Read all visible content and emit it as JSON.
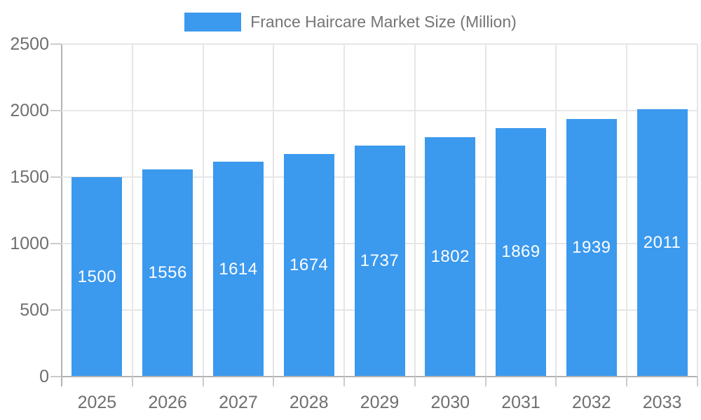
{
  "chart_data": {
    "type": "bar",
    "title": "France Haircare Market Size (Million)",
    "categories": [
      "2025",
      "2026",
      "2027",
      "2028",
      "2029",
      "2030",
      "2031",
      "2032",
      "2033"
    ],
    "values": [
      1500,
      1556,
      1614,
      1674,
      1737,
      1802,
      1869,
      1939,
      2011
    ],
    "xlabel": "",
    "ylabel": "",
    "ylim": [
      0,
      2500
    ],
    "yticks": [
      0,
      500,
      1000,
      1500,
      2000,
      2500
    ],
    "grid": true,
    "legend_position": "top",
    "bar_value_labels": "inside-center"
  },
  "colors": {
    "bar": "#3B99EE",
    "bar_label": "#FFFFFF",
    "axis_text": "#6F6F6F",
    "legend_text": "#757575",
    "gridline": "#E6E6E6",
    "axis_line": "#B3B3B3",
    "tick": "#CCCCCC"
  }
}
